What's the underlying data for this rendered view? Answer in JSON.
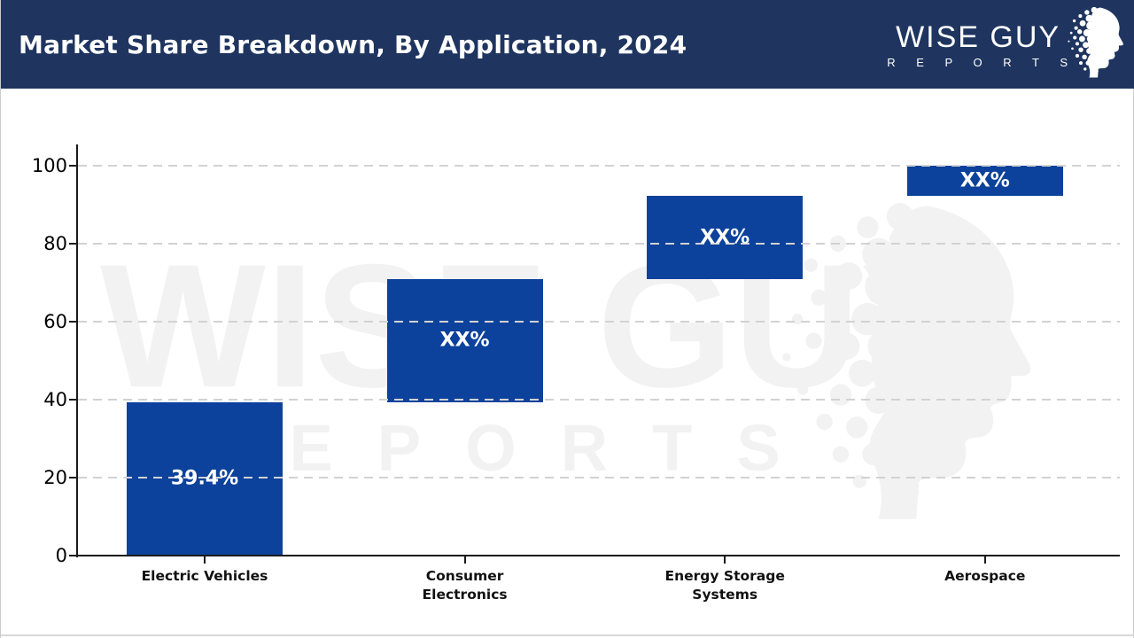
{
  "header": {
    "title": "Market Share Breakdown, By Application, 2024"
  },
  "logo": {
    "line1": "WISE GUY",
    "line2": "R E P O R T S",
    "head_icon": "dotted-head-profile"
  },
  "watermark": {
    "line1": "WISE GUY",
    "line2": "REPORTS",
    "head_icon": "dotted-head-profile"
  },
  "chart_data": {
    "type": "bar",
    "variant": "stacked-percentage-waterfall",
    "title": "Market Share Breakdown, By Application, 2024",
    "categories": [
      "Electric Vehicles",
      "Consumer Electronics",
      "Energy Storage Systems",
      "Aerospace"
    ],
    "category_label_lines": [
      [
        "Electric Vehicles"
      ],
      [
        "Consumer",
        "Electronics"
      ],
      [
        "Energy Storage",
        "Systems"
      ],
      [
        "Aerospace"
      ]
    ],
    "values": [
      39.4,
      31.6,
      21.2,
      7.8
    ],
    "cumulative": [
      [
        0,
        39.4
      ],
      [
        39.4,
        71.0
      ],
      [
        71.0,
        92.2
      ],
      [
        92.2,
        100
      ]
    ],
    "bar_labels": [
      "39.4%",
      "XX%",
      "XX%",
      "XX%"
    ],
    "ylim": [
      0,
      100
    ],
    "yticks": [
      0,
      20,
      40,
      60,
      80,
      100
    ],
    "grid": {
      "horizontal": true,
      "style": "dashed",
      "drawn_over_bars": true
    },
    "legend": null
  },
  "colors": {
    "header_bg": "#1f3560",
    "bar": "#0c429c",
    "grid": "#d2d2d2",
    "axis": "#1a1a1a",
    "title_text": "#ffffff",
    "bar_label_text": "#ffffff",
    "tick_label_text": "#000000",
    "watermark": "#f2f2f2"
  }
}
